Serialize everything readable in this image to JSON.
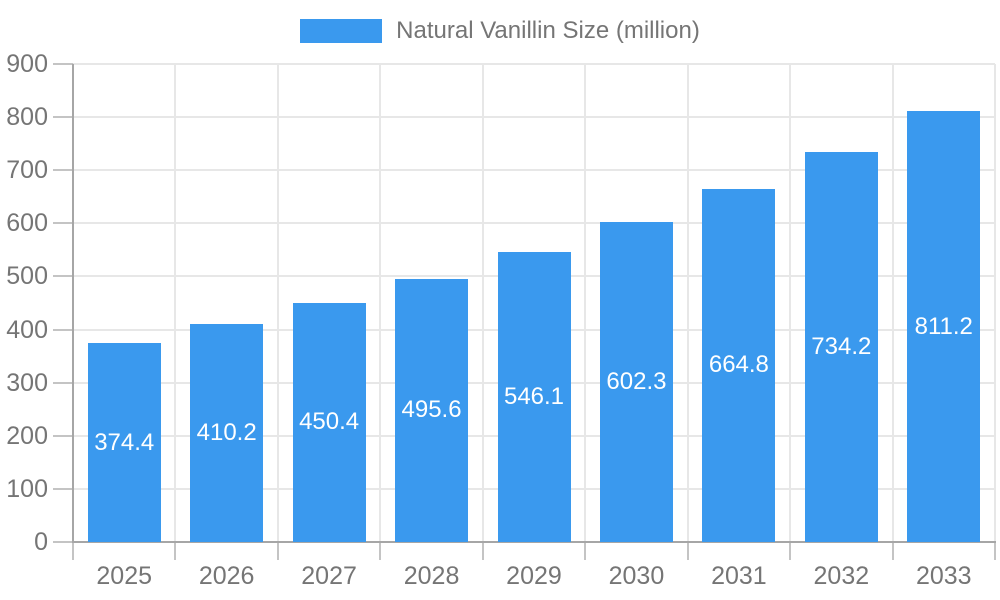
{
  "chart_data": {
    "type": "bar",
    "title": "",
    "series_name": "Natural Vanillin Size (million)",
    "categories": [
      "2025",
      "2026",
      "2027",
      "2028",
      "2029",
      "2030",
      "2031",
      "2032",
      "2033"
    ],
    "values": [
      374.4,
      410.2,
      450.4,
      495.6,
      546.1,
      602.3,
      664.8,
      734.2,
      811.2
    ],
    "value_labels": [
      "374.4",
      "410.2",
      "450.4",
      "495.6",
      "546.1",
      "602.3",
      "664.8",
      "734.2",
      "811.2"
    ],
    "xlabel": "",
    "ylabel": "",
    "ylim": [
      0,
      900
    ],
    "yticks": [
      0,
      100,
      200,
      300,
      400,
      500,
      600,
      700,
      800,
      900
    ],
    "grid": true,
    "legend_position": "top-center",
    "colors": {
      "bar": "#3a99ee",
      "bar_value_text": "#ffffff",
      "axis_text": "#757575",
      "legend_text": "#757575",
      "gridline": "#e7e7e7",
      "axis_line": "#a6a6a6",
      "tick": "#c4c4c4",
      "background": "#ffffff"
    }
  }
}
